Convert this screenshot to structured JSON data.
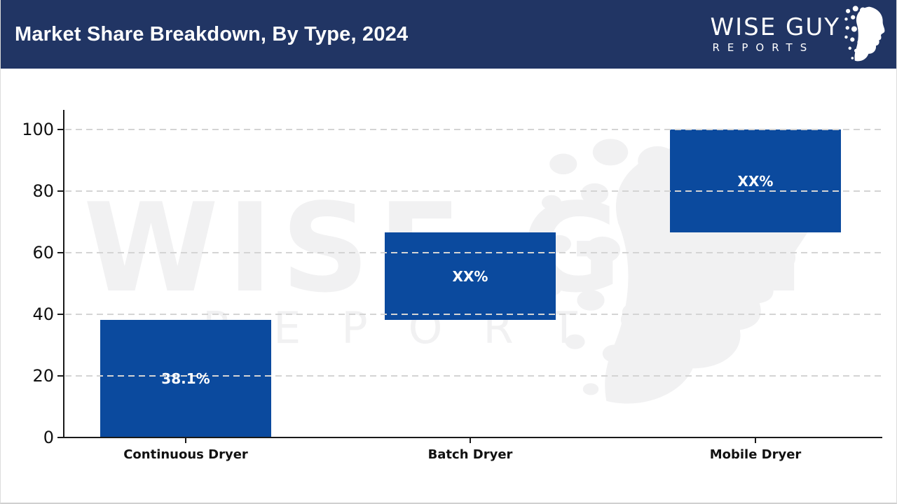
{
  "logo": {
    "line1": "WISE GUY",
    "line2": "REPORTS"
  },
  "watermark": {
    "line1": "WISE GUY",
    "line2": "REPORTS"
  },
  "chart_data": {
    "type": "bar",
    "subtype": "waterfall",
    "title": "Market Share Breakdown, By Type, 2024",
    "categories": [
      "Continuous Dryer",
      "Batch Dryer",
      "Mobile Dryer"
    ],
    "segments": [
      {
        "category": "Continuous Dryer",
        "start": 0,
        "end": 38.1,
        "value_label": "38.1%"
      },
      {
        "category": "Batch Dryer",
        "start": 38.1,
        "end": 66.5,
        "value_label": "XX%"
      },
      {
        "category": "Mobile Dryer",
        "start": 66.5,
        "end": 100,
        "value_label": "XX%"
      }
    ],
    "yticks": [
      0,
      20,
      40,
      60,
      80,
      100
    ],
    "ylim": [
      0,
      105
    ],
    "xlabel": "",
    "ylabel": "",
    "grid": "horizontal-dashed",
    "legend": "none",
    "colors": {
      "bar": "#0b4a9e",
      "bar_label": "#ffffff",
      "header_bg": "#213564",
      "header_text": "#ffffff",
      "axis": "#1a1a1a",
      "gridline": "#d4d4d4",
      "watermark": "#f1f1f2"
    }
  }
}
